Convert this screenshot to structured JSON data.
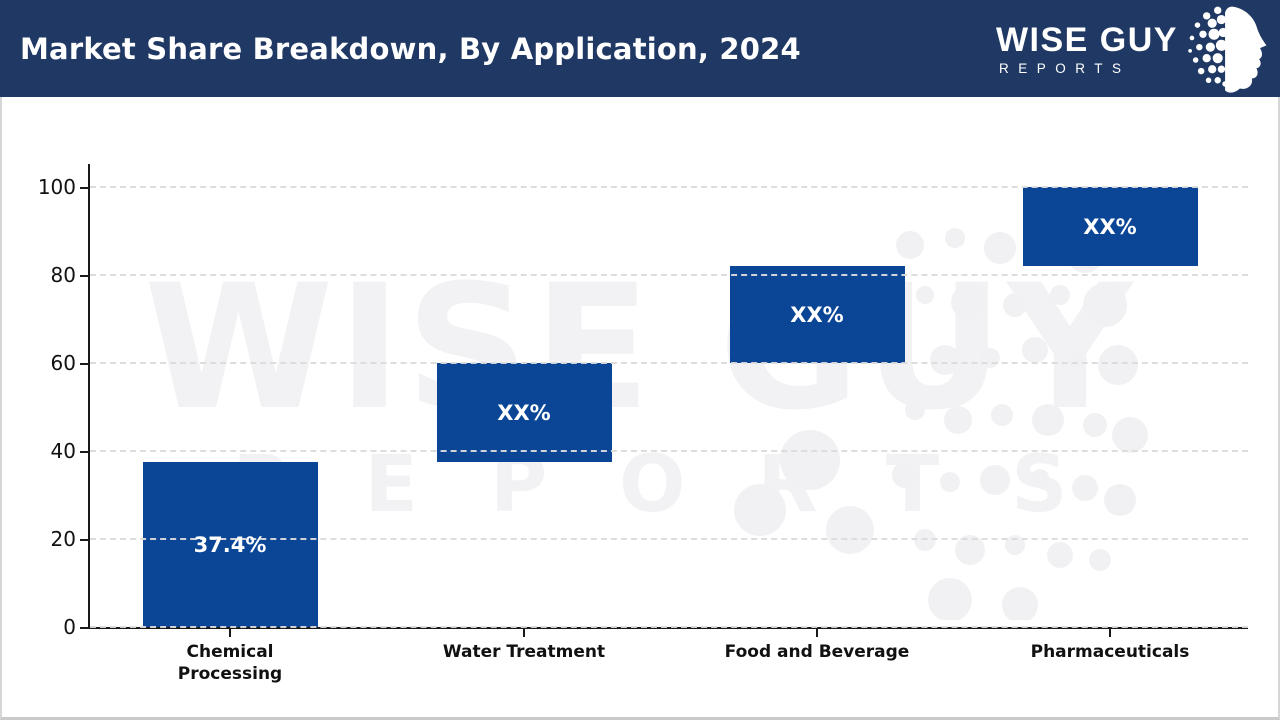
{
  "header": {
    "title": "Market Share Breakdown, By Application, 2024",
    "logo": {
      "name": "WISE GUY",
      "sub": "REPORTS"
    }
  },
  "watermark": {
    "name": "WISE GUY",
    "sub": "REPORTS"
  },
  "chart_data": {
    "type": "bar",
    "subtype": "waterfall",
    "title": "Market Share Breakdown, By Application, 2024",
    "categories": [
      "Chemical\nProcessing",
      "Water Treatment",
      "Food and Beverage",
      "Pharmaceuticals"
    ],
    "series": [
      {
        "name": "Market Share",
        "segments": [
          {
            "category": "Chemical Processing",
            "start": 0,
            "end": 37.4,
            "label": "37.4%"
          },
          {
            "category": "Water Treatment",
            "start": 37.4,
            "end": 60,
            "label": "XX%"
          },
          {
            "category": "Food and Beverage",
            "start": 60,
            "end": 82,
            "label": "XX%"
          },
          {
            "category": "Pharmaceuticals",
            "start": 82,
            "end": 100,
            "label": "XX%"
          }
        ]
      }
    ],
    "yticks": [
      0,
      20,
      40,
      60,
      80,
      100
    ],
    "ylim": [
      0,
      100
    ],
    "xlabel": "",
    "ylabel": "",
    "grid": "horizontal-dashed-over-bars",
    "legend": "none",
    "colors": {
      "bar": "#0a4596",
      "bar_label": "#ffffff",
      "axis": "#1a1a1a",
      "grid": "#dbdbdb",
      "header_bg": "#1f3864",
      "header_text": "#ffffff",
      "watermark": "#f2f2f4"
    }
  }
}
